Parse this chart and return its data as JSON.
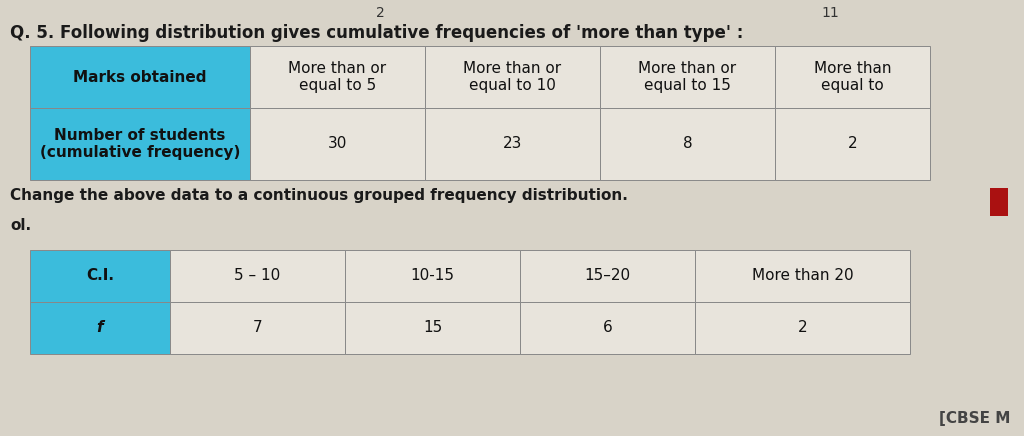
{
  "title": "Q. 5. Following distribution gives cumulative frequencies of 'more than type' :",
  "subtitle": "Change the above data to a continuous grouped frequency distribution.",
  "sol_label": "ol.",
  "cbse_label": "[CBSE M",
  "top_numbers": "2                                          11",
  "table1": {
    "col_headers": [
      "Marks obtained",
      "More than or\nequal to 5",
      "More than or\nequal to 10",
      "More than or\nequal to 15",
      "More than\nequal to"
    ],
    "row1_label": "Number of students\n(cumulative frequency)",
    "row1_values": [
      "30",
      "23",
      "8",
      "2"
    ],
    "header_bg": "#3BBCDC",
    "cell_bg": "#E8E4DC",
    "border_color": "#888888"
  },
  "table2": {
    "col_headers": [
      "C.I.",
      "5 – 10",
      "10-15",
      "15–20",
      "More than 20"
    ],
    "row1_label": "f",
    "row1_values": [
      "7",
      "15",
      "6",
      "2"
    ],
    "header_bg": "#3BBCDC",
    "cell_bg": "#E8E4DC",
    "border_color": "#888888"
  },
  "bg_color": "#D8D3C8",
  "text_color": "#1A1A1A",
  "bookmark_color": "#AA1111"
}
